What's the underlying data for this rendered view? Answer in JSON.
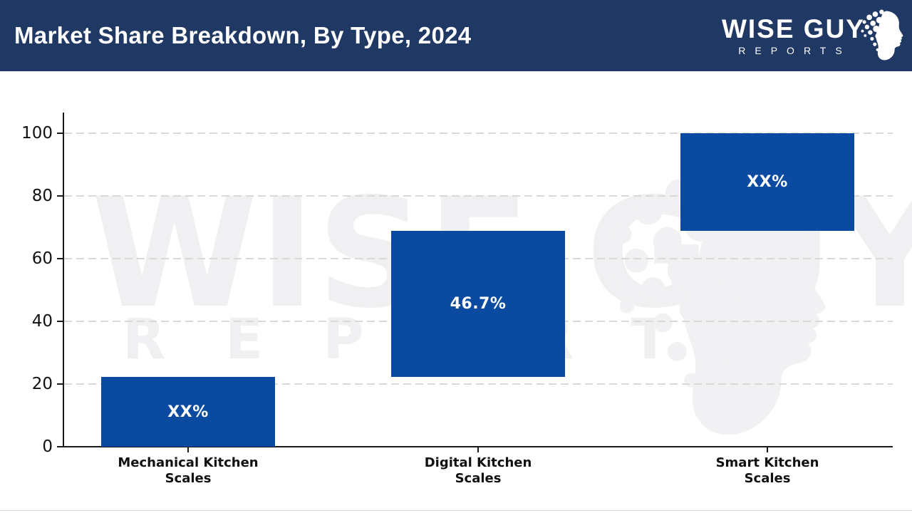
{
  "colors": {
    "header_navy": "#203864",
    "bar_blue": "#0b4aa1",
    "grid_gray": "#d9d9d9",
    "watermark_gray": "#f0f0f2",
    "axis_black": "#1a1a1a",
    "label_white": "#ffffff"
  },
  "header": {
    "title": "Market Share Breakdown, By Type, 2024",
    "logo": {
      "name": "WISE GUY",
      "sub": "REPORTS"
    }
  },
  "watermark": {
    "name": "WISE GUY",
    "sub": "REPORTS"
  },
  "chart_data": {
    "type": "bar",
    "variant": "floating-segment-breakdown",
    "title": "Market Share Breakdown, By Type, 2024",
    "xlabel": "",
    "ylabel": "",
    "ylim": [
      0,
      105
    ],
    "yticks": [
      0,
      20,
      40,
      60,
      80,
      100
    ],
    "grid": "horizontal-dashed",
    "legend": "none",
    "categories": [
      {
        "line1": "Mechanical Kitchen",
        "line2": "Scales"
      },
      {
        "line1": "Digital Kitchen",
        "line2": "Scales"
      },
      {
        "line1": "Smart Kitchen",
        "line2": "Scales"
      }
    ],
    "bars": [
      {
        "category": "Mechanical Kitchen Scales",
        "label": "XX%",
        "from": 0,
        "to": 22.2
      },
      {
        "category": "Digital Kitchen Scales",
        "label": "46.7%",
        "value": 46.7,
        "from": 22.2,
        "to": 68.9
      },
      {
        "category": "Smart Kitchen Scales",
        "label": "XX%",
        "from": 68.9,
        "to": 100
      }
    ]
  }
}
